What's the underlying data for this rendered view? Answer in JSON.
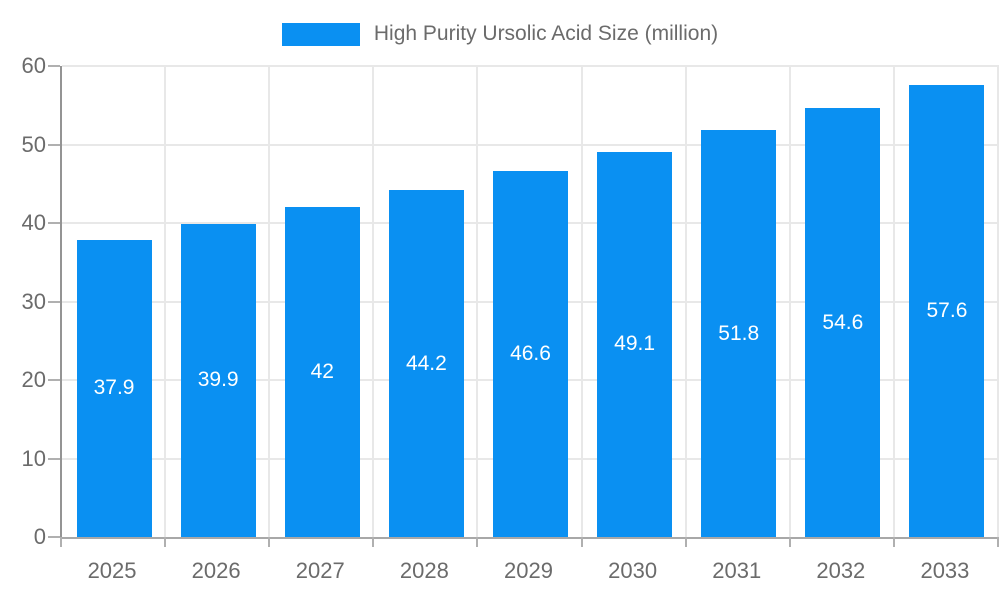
{
  "chart_data": {
    "type": "bar",
    "title": "High Purity Ursolic Acid Size (million)",
    "categories": [
      "2025",
      "2026",
      "2027",
      "2028",
      "2029",
      "2030",
      "2031",
      "2032",
      "2033"
    ],
    "values": [
      37.9,
      39.9,
      42,
      44.2,
      46.6,
      49.1,
      51.8,
      54.6,
      57.6
    ],
    "xlabel": "",
    "ylabel": "",
    "ylim": [
      0,
      60
    ],
    "y_ticks": [
      0,
      10,
      20,
      30,
      40,
      50,
      60
    ],
    "grid": true,
    "legend_position": "top-center",
    "bar_color": "#0a90f2",
    "value_label_color": "#ffffff"
  },
  "legend": {
    "series_label": "High Purity Ursolic Acid Size (million)",
    "swatch_color": "#0a90f2"
  },
  "colors": {
    "background": "#ffffff",
    "axis_text": "#6b6b6b",
    "legend_text": "#6b6b6b",
    "gridline": "#e8e8e8",
    "axis_line": "#9e9e9e",
    "tick": "#b0b0b0"
  }
}
